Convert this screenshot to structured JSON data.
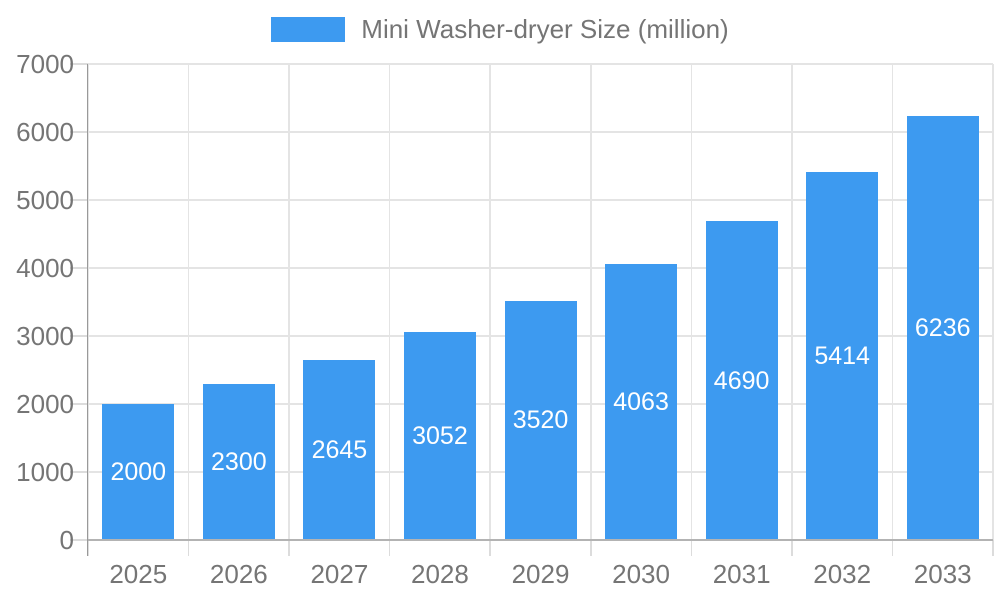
{
  "chart_data": {
    "type": "bar",
    "legend_position": "top",
    "categories": [
      "2025",
      "2026",
      "2027",
      "2028",
      "2029",
      "2030",
      "2031",
      "2032",
      "2033"
    ],
    "series": [
      {
        "name": "Mini Washer-dryer Size (million)",
        "values": [
          2000,
          2300,
          2645,
          3052,
          3520,
          4063,
          4690,
          5414,
          6236
        ]
      }
    ],
    "value_labels_shown": true,
    "ylim": [
      0,
      7000
    ],
    "yticks": [
      0,
      1000,
      2000,
      3000,
      4000,
      5000,
      6000,
      7000
    ],
    "grid": true,
    "colors": {
      "bar": "#3d9af0",
      "bar_label_text": "#ffffff",
      "axis_label_text": "#757575",
      "legend_text": "#757575",
      "gridline": "#e4e4e4",
      "tick": "#dcdcdc",
      "y_axis_line": "#999999",
      "x_axis_line": "#b3b3b3",
      "background": "#ffffff"
    }
  }
}
